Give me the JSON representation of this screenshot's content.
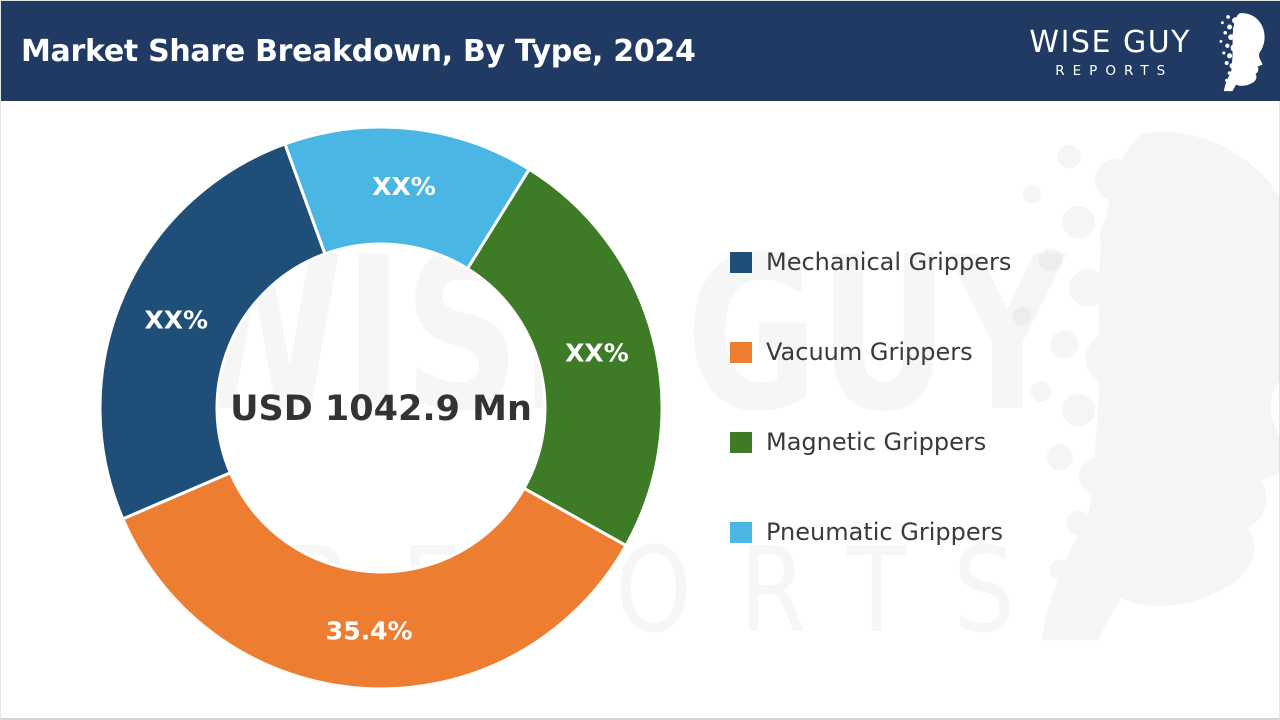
{
  "header": {
    "title": "Market Share Breakdown, By Type, 2024",
    "background_color": "#213A63",
    "logo": {
      "wordmark": "WISE GUY",
      "subtext": "REPORTS"
    }
  },
  "chart_data": {
    "type": "pie",
    "subtype": "donut",
    "title": "Market Share Breakdown, By Type, 2024",
    "center_label": "USD 1042.9 Mn",
    "legend_position": "right",
    "start_angle_deg": -20,
    "slices": [
      {
        "name": "Mechanical Grippers",
        "value_pct": 25.9,
        "label": "XX%",
        "color": "#1F4E79"
      },
      {
        "name": "Vacuum Grippers",
        "value_pct": 35.4,
        "label": "35.4%",
        "color": "#ED7D31"
      },
      {
        "name": "Magnetic Grippers",
        "value_pct": 24.3,
        "label": "XX%",
        "color": "#3E7B27"
      },
      {
        "name": "Pneumatic Grippers",
        "value_pct": 14.4,
        "label": "XX%",
        "color": "#49B6E3"
      }
    ]
  },
  "watermark": {
    "wordmark": "WISE GUY",
    "subtext": "REPORTS"
  }
}
